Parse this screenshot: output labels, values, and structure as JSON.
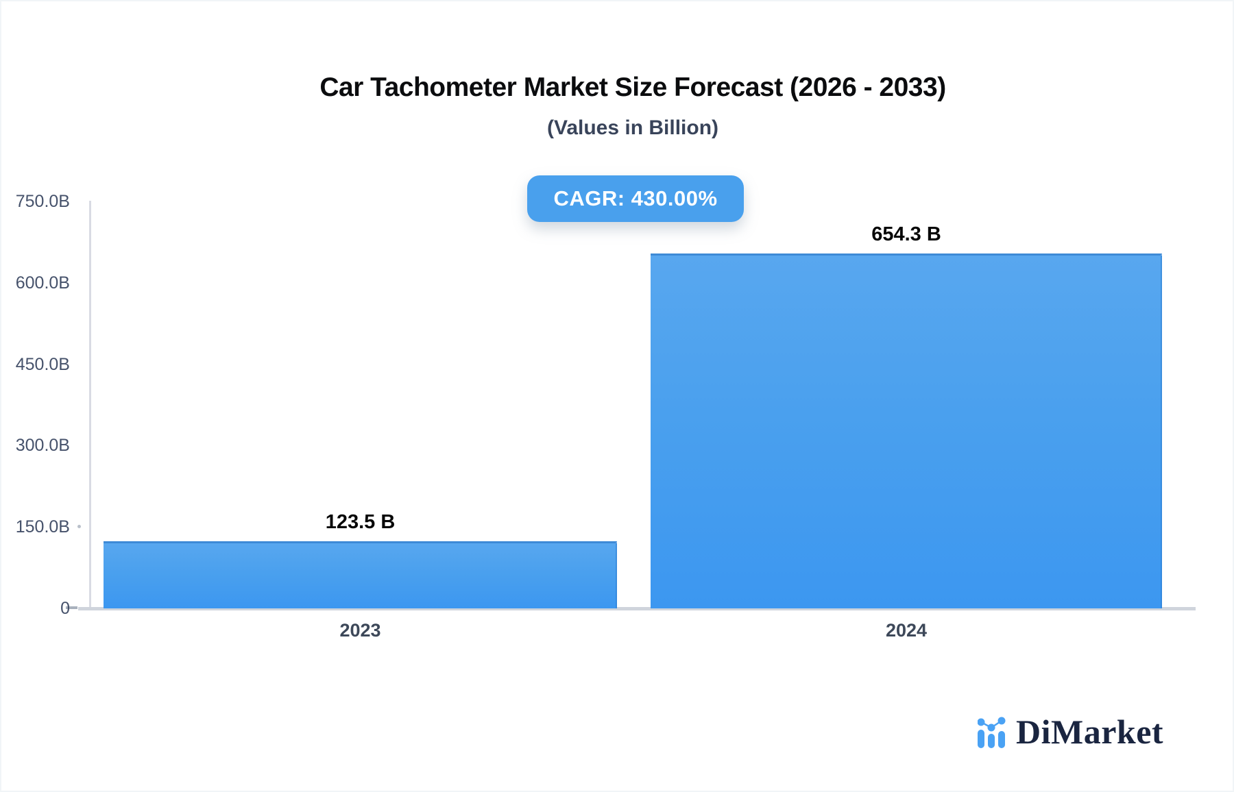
{
  "header": {
    "title": "Car Tachometer Market Size Forecast (2026 - 2033)",
    "subtitle": "(Values in Billion)",
    "cagr_badge": "CAGR: 430.00%"
  },
  "chart_data": {
    "type": "bar",
    "title": "Car Tachometer Market Size Forecast (2026 - 2033)",
    "subtitle": "(Values in Billion)",
    "categories": [
      "2023",
      "2024"
    ],
    "values": [
      123.5,
      654.3
    ],
    "bar_labels": [
      "123.5 B",
      "654.3 B"
    ],
    "cagr_percent": "430.00%",
    "xlabel": "",
    "ylabel": "",
    "ylim": [
      0,
      750
    ],
    "yticks": [
      {
        "value": 0,
        "label": "0"
      },
      {
        "value": 150,
        "label": "150.0B"
      },
      {
        "value": 300,
        "label": "300.0B"
      },
      {
        "value": 450,
        "label": "450.0B"
      },
      {
        "value": 600,
        "label": "600.0B"
      },
      {
        "value": 750,
        "label": "750.0B"
      }
    ],
    "grid": false,
    "legend": false,
    "bar_color_top": "#58a7ef",
    "bar_color_bottom": "#3c97f0",
    "badge_color": "#49a0ed"
  },
  "footer": {
    "brand": "DiMarket",
    "brand_color": "#1a2540",
    "icon_color": "#4aa2f4",
    "icon": "bar-chart-logo-icon"
  }
}
